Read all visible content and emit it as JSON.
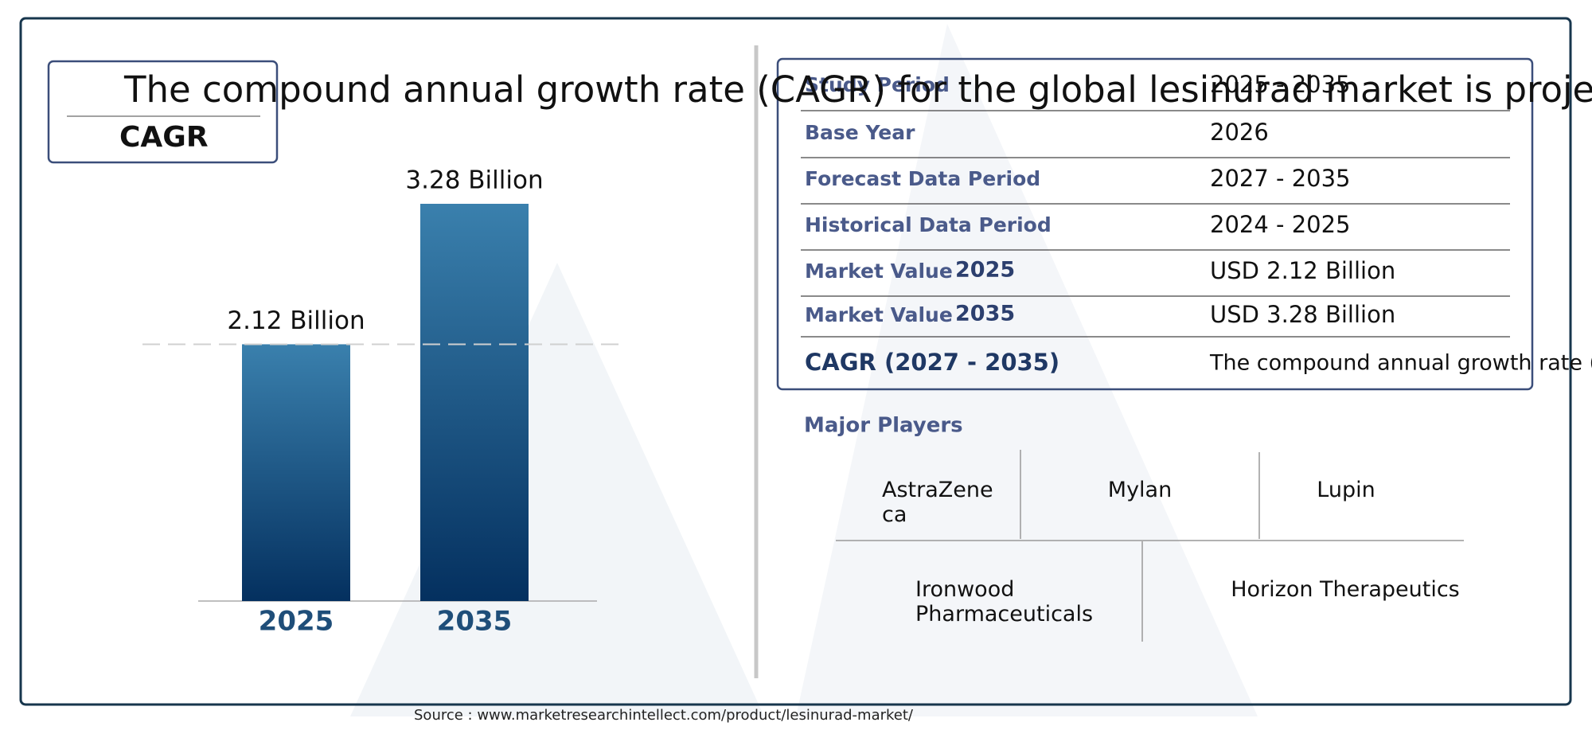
{
  "title": {
    "text": "The compound annual growth rate (CAGR) for the global lesinurad market is projected to b",
    "label": "CAGR"
  },
  "chart_data": {
    "type": "bar",
    "categories": [
      "2025",
      "2035"
    ],
    "values": [
      2.12,
      3.28
    ],
    "value_labels": [
      "2.12 Billion",
      "3.28 Billion"
    ],
    "gradient": [
      "#3a80ad",
      "#04305f"
    ]
  },
  "table": {
    "rows": [
      {
        "label": "Study Period",
        "value": "2025 - 2035"
      },
      {
        "label": "Base Year",
        "value": "2026"
      },
      {
        "label": "Forecast Data Period",
        "value": "2027 - 2035"
      },
      {
        "label": "Historical Data Period",
        "value": "2024 - 2025"
      },
      {
        "label": "Market Value",
        "year": "2025",
        "value": "USD 2.12 Billion"
      },
      {
        "label": "Market Value",
        "year": "2035",
        "value": "USD 3.28 Billion"
      },
      {
        "label": "CAGR (2027 - 2035)",
        "value": "The compound annual growth rate (CA"
      }
    ]
  },
  "major_players": {
    "title": "Major Players",
    "names": [
      "AstraZeneca",
      "Mylan",
      "Lupin",
      "Ironwood Pharmaceuticals",
      "Horizon Therapeutics"
    ]
  },
  "source": "Source : www.marketresearchintellect.com/product/lesinurad-market/"
}
